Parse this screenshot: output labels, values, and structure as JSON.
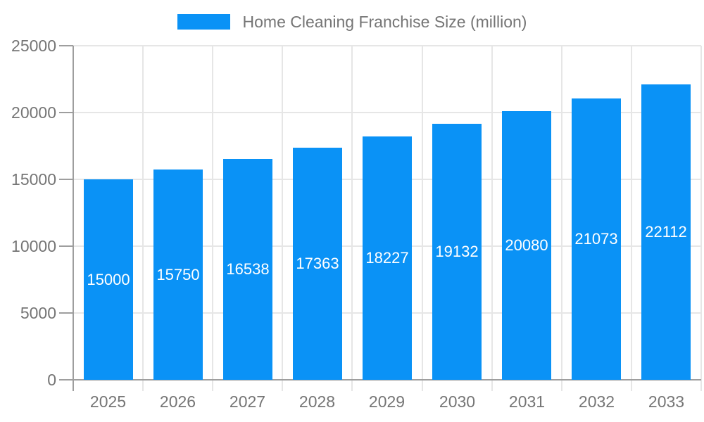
{
  "chart_data": {
    "type": "bar",
    "title": "Home Cleaning Franchise Size (million)",
    "categories": [
      "2025",
      "2026",
      "2027",
      "2028",
      "2029",
      "2030",
      "2031",
      "2032",
      "2033"
    ],
    "values": [
      15000,
      15750,
      16538,
      17363,
      18227,
      19132,
      20080,
      21073,
      22112
    ],
    "series": [
      {
        "name": "Home Cleaning Franchise Size (million)",
        "values": [
          15000,
          15750,
          16538,
          17363,
          18227,
          19132,
          20080,
          21073,
          22112
        ]
      }
    ],
    "xlabel": "",
    "ylabel": "",
    "ylim": [
      0,
      25000
    ],
    "yticks": [
      0,
      5000,
      10000,
      15000,
      20000,
      25000
    ],
    "grid": true,
    "legend_position": "top",
    "value_labels": "inside-center",
    "colors": {
      "bar": "#0a92f6",
      "bar_value_text": "#ffffff",
      "axis_text": "#757575",
      "gridline": "#e6e6e6",
      "axis_line": "#9e9e9e",
      "background": "#ffffff"
    }
  },
  "legend": {
    "label": "Home Cleaning Franchise Size (million)"
  }
}
